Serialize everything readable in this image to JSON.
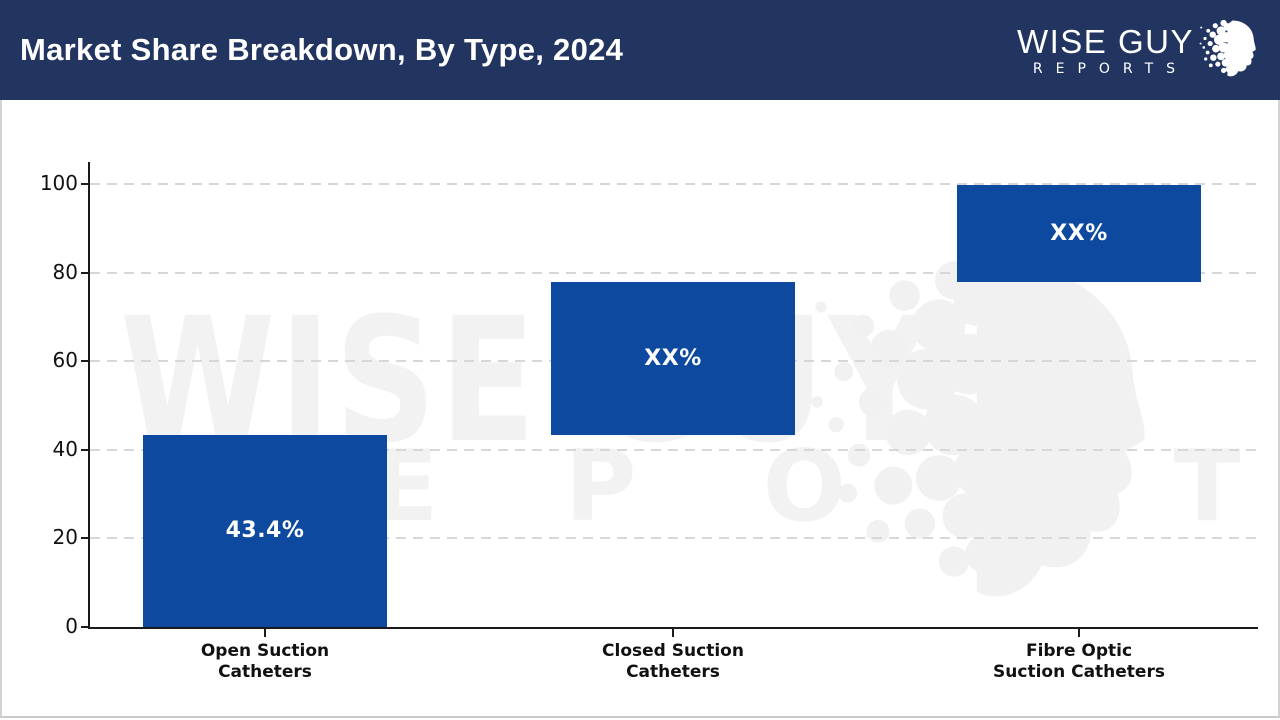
{
  "header": {
    "title": "Market Share Breakdown, By Type, 2024",
    "logo": {
      "brand": "WISE GUY",
      "sub": "REPORTS"
    }
  },
  "watermark": {
    "line1": "WISE GUY",
    "line2": "R E P O R T S"
  },
  "chart_data": {
    "type": "bar",
    "subtype": "floating-segment (stacked share breakdown)",
    "title": "Market Share Breakdown, By Type, 2024",
    "categories": [
      [
        "Open Suction",
        "Catheters"
      ],
      [
        "Closed Suction",
        "Catheters"
      ],
      [
        "Fibre Optic",
        "Suction Catheters"
      ]
    ],
    "bars": [
      {
        "range": [
          0,
          43.4
        ],
        "label": "43.4%"
      },
      {
        "range": [
          43.4,
          77.9
        ],
        "label": "XX%"
      },
      {
        "range": [
          77.9,
          99.8
        ],
        "label": "XX%"
      }
    ],
    "values_masked_as_xx": true,
    "yticks": [
      0,
      20,
      40,
      60,
      80,
      100
    ],
    "ylim": [
      0,
      100
    ],
    "grid": "dashed-horizontal",
    "legend": "none",
    "bar_color": "#0d4a9f"
  },
  "colors": {
    "header_bg": "#223560",
    "bar": "#0d4a9f",
    "grid": "#d7d7d7",
    "axis": "#1a1a1a",
    "watermark": "#f2f2f2",
    "border": "#c9c9c9"
  }
}
